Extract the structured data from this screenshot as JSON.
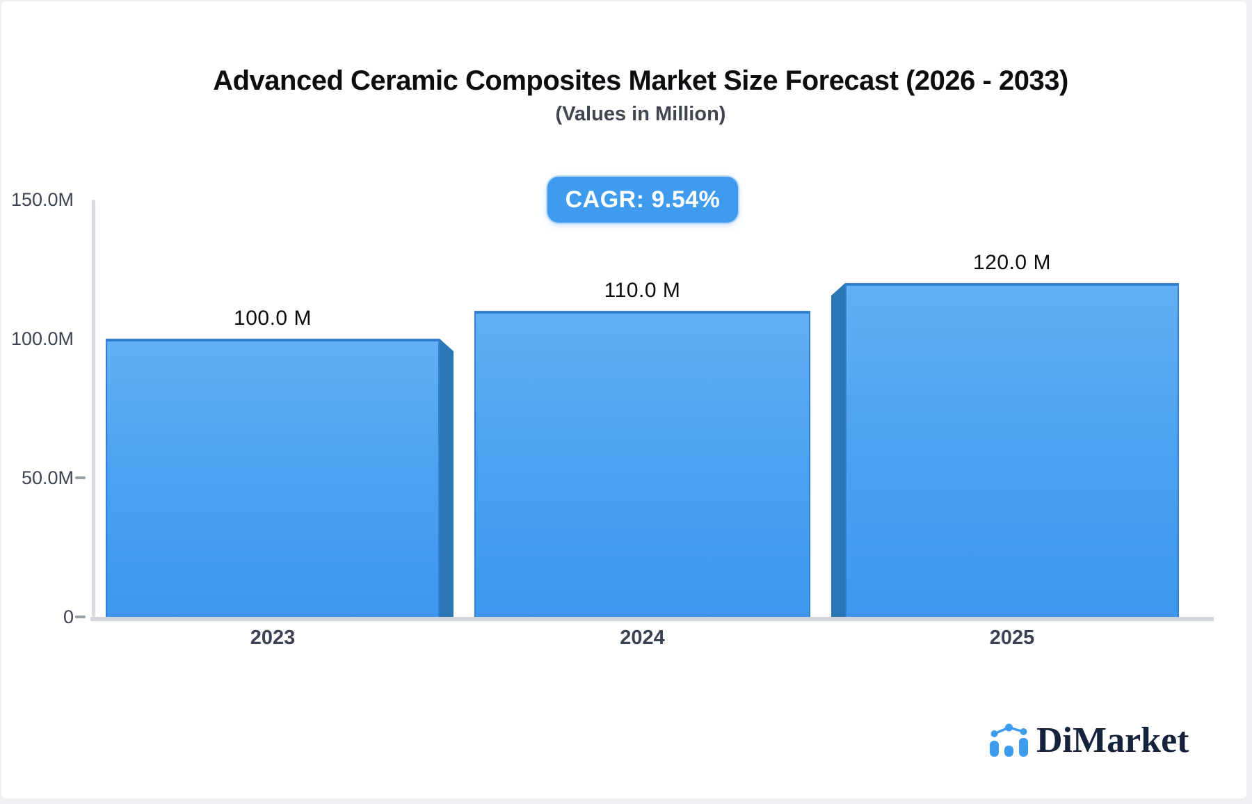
{
  "header": {
    "title": "Advanced Ceramic Composites Market Size Forecast (2026 - 2033)",
    "subtitle": "(Values in Million)",
    "cagr_label": "CAGR: 9.54%"
  },
  "brand": {
    "name": "DiMarket",
    "icon": "mini-bar-line-chart-icon"
  },
  "colors": {
    "accent_blue": "#3e9bee",
    "bar_gradient_top": "#63b0f3",
    "bar_gradient_bottom": "#3e97ee",
    "bar_border": "#2f80d2",
    "bar_side_3d": "#2d76b6",
    "axis_gray": "#d5d8dc",
    "tick_text": "#3e4551",
    "title_text": "#0c0d10"
  },
  "chart_data": {
    "type": "bar",
    "title": "Advanced Ceramic Composites Market Size Forecast (2026 - 2033)",
    "subtitle": "(Values in Million)",
    "unit": "Million",
    "categories": [
      "2023",
      "2024",
      "2025"
    ],
    "values": [
      100.0,
      110.0,
      120.0
    ],
    "value_labels": [
      "100.0 M",
      "110.0 M",
      "120.0 M"
    ],
    "series": [
      {
        "name": "Market Size",
        "values": [
          100.0,
          110.0,
          120.0
        ]
      }
    ],
    "annotations": [
      "CAGR: 9.54%"
    ],
    "xlabel": "",
    "ylabel": "",
    "ylim": [
      0,
      150
    ],
    "yticks": [
      {
        "label": "150.0M",
        "value": 150,
        "dash": false
      },
      {
        "label": "100.0M",
        "value": 100,
        "dash": false
      },
      {
        "label": "50.0M",
        "value": 50,
        "dash": true
      },
      {
        "label": "0",
        "value": 0,
        "dash": true
      }
    ],
    "grid": false,
    "legend": false,
    "bar_style": "pseudo-3d"
  }
}
